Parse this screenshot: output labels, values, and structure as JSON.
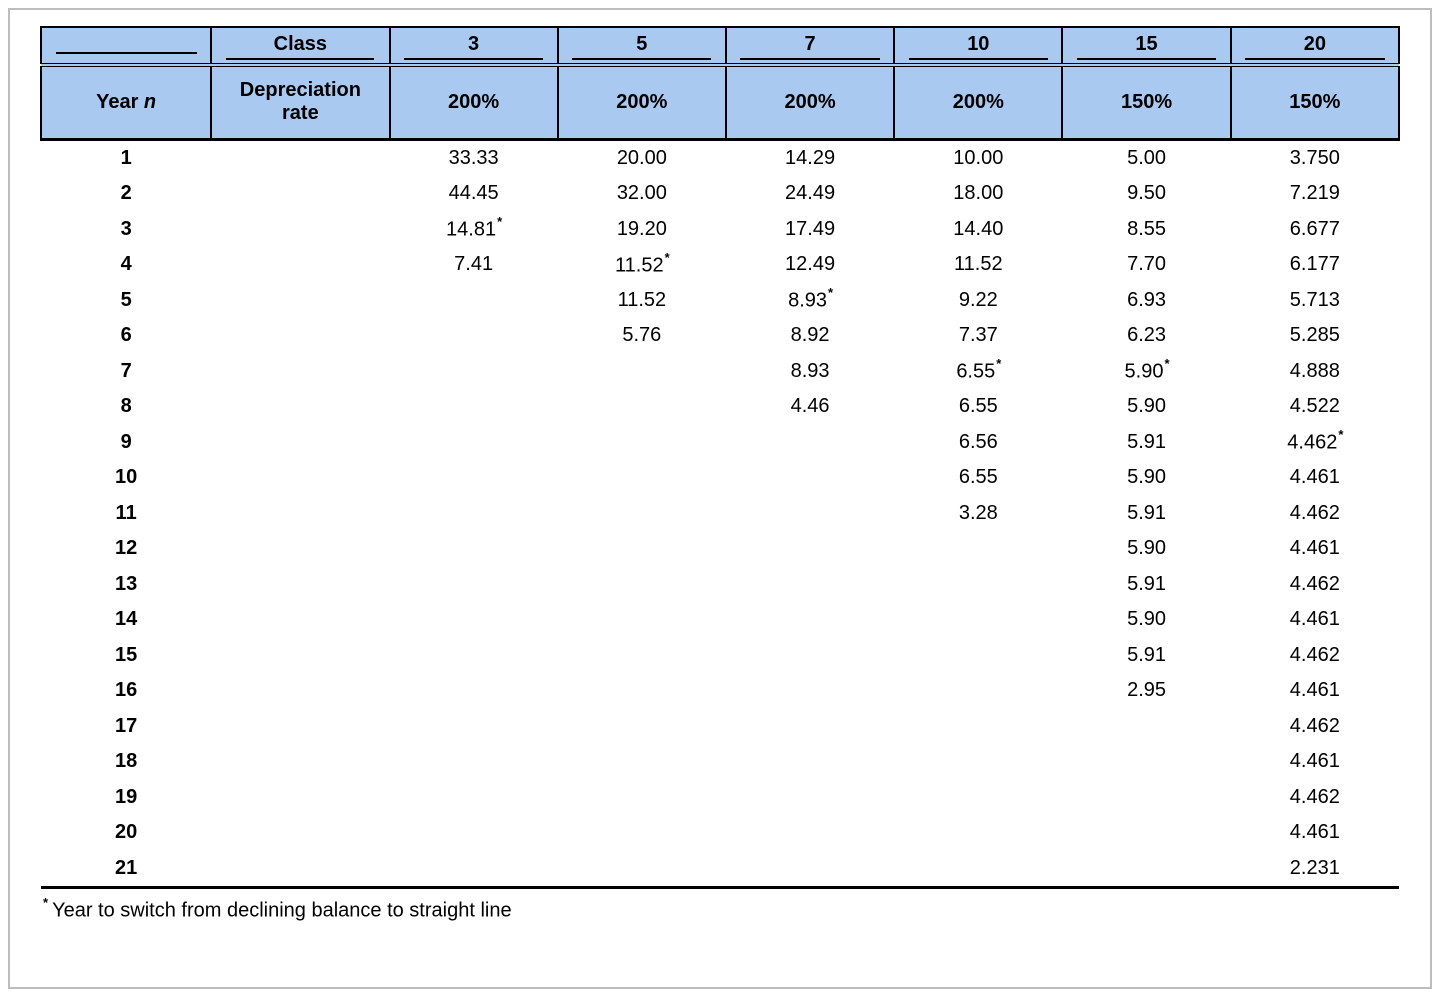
{
  "page": {
    "frame_border_color": "#bdbdbd"
  },
  "table": {
    "header": {
      "header_bg": "#A9C9F0",
      "corner_label": "",
      "class_label": "Class",
      "year_label_prefix": "Year ",
      "year_label_var": "n",
      "rate_label": "Depreciation rate",
      "classes": [
        "3",
        "5",
        "7",
        "10",
        "15",
        "20"
      ],
      "rates": [
        "200%",
        "200%",
        "200%",
        "200%",
        "150%",
        "150%"
      ]
    },
    "rows": [
      {
        "year": "1",
        "values": [
          "33.33",
          "20.00",
          "14.29",
          "10.00",
          "5.00",
          "3.750"
        ]
      },
      {
        "year": "2",
        "values": [
          "44.45",
          "32.00",
          "24.49",
          "18.00",
          "9.50",
          "7.219"
        ]
      },
      {
        "year": "3",
        "values": [
          "14.81*",
          "19.20",
          "17.49",
          "14.40",
          "8.55",
          "6.677"
        ]
      },
      {
        "year": "4",
        "values": [
          "7.41",
          "11.52*",
          "12.49",
          "11.52",
          "7.70",
          "6.177"
        ]
      },
      {
        "year": "5",
        "values": [
          "",
          "11.52",
          "8.93*",
          "9.22",
          "6.93",
          "5.713"
        ]
      },
      {
        "year": "6",
        "values": [
          "",
          "5.76",
          "8.92",
          "7.37",
          "6.23",
          "5.285"
        ]
      },
      {
        "year": "7",
        "values": [
          "",
          "",
          "8.93",
          "6.55*",
          "5.90*",
          "4.888"
        ]
      },
      {
        "year": "8",
        "values": [
          "",
          "",
          "4.46",
          "6.55",
          "5.90",
          "4.522"
        ]
      },
      {
        "year": "9",
        "values": [
          "",
          "",
          "",
          "6.56",
          "5.91",
          "4.462*"
        ]
      },
      {
        "year": "10",
        "values": [
          "",
          "",
          "",
          "6.55",
          "5.90",
          "4.461"
        ]
      },
      {
        "year": "11",
        "values": [
          "",
          "",
          "",
          "3.28",
          "5.91",
          "4.462"
        ]
      },
      {
        "year": "12",
        "values": [
          "",
          "",
          "",
          "",
          "5.90",
          "4.461"
        ]
      },
      {
        "year": "13",
        "values": [
          "",
          "",
          "",
          "",
          "5.91",
          "4.462"
        ]
      },
      {
        "year": "14",
        "values": [
          "",
          "",
          "",
          "",
          "5.90",
          "4.461"
        ]
      },
      {
        "year": "15",
        "values": [
          "",
          "",
          "",
          "",
          "5.91",
          "4.462"
        ]
      },
      {
        "year": "16",
        "values": [
          "",
          "",
          "",
          "",
          "2.95",
          "4.461"
        ]
      },
      {
        "year": "17",
        "values": [
          "",
          "",
          "",
          "",
          "",
          "4.462"
        ]
      },
      {
        "year": "18",
        "values": [
          "",
          "",
          "",
          "",
          "",
          "4.461"
        ]
      },
      {
        "year": "19",
        "values": [
          "",
          "",
          "",
          "",
          "",
          "4.462"
        ]
      },
      {
        "year": "20",
        "values": [
          "",
          "",
          "",
          "",
          "",
          "4.461"
        ]
      },
      {
        "year": "21",
        "values": [
          "",
          "",
          "",
          "",
          "",
          "2.231"
        ]
      }
    ],
    "footnote_marker": "*",
    "footnote_text": "Year to switch from declining balance to straight line"
  }
}
